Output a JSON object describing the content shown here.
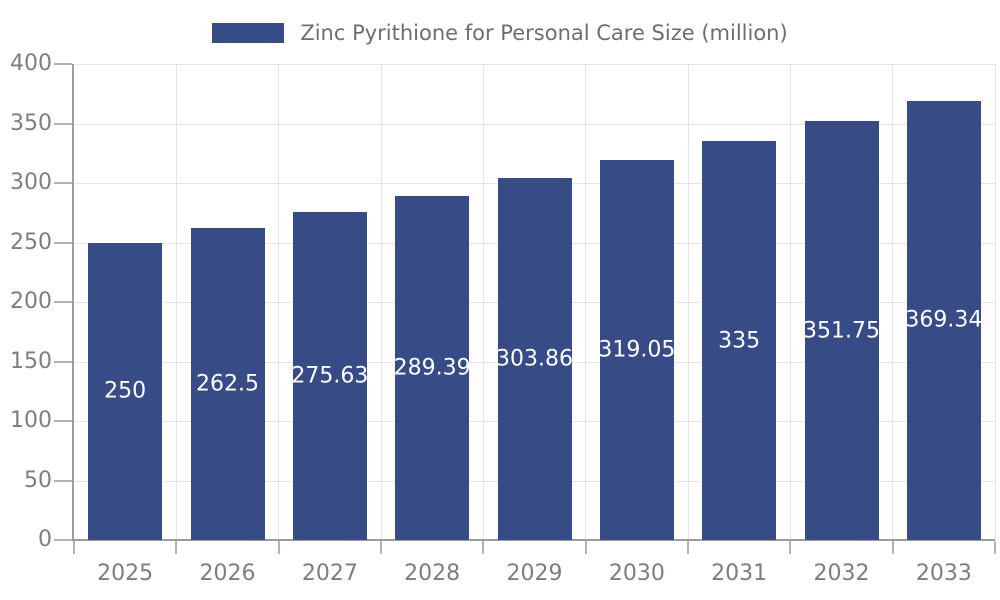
{
  "legend": {
    "label": "Zinc Pyrithione for Personal Care Size (million)"
  },
  "colors": {
    "bar": "#374b86",
    "grid": "#e3e3ea",
    "axis_line": "#9b9ba1",
    "tick": "#b2b2b8",
    "axis_text": "#7d7d82",
    "legend_text": "#6d6d73",
    "value_text": "#ffffff"
  },
  "chart_data": {
    "type": "bar",
    "title": "Zinc Pyrithione for Personal Care Size (million)",
    "categories": [
      "2025",
      "2026",
      "2027",
      "2028",
      "2029",
      "2030",
      "2031",
      "2032",
      "2033"
    ],
    "series": [
      {
        "name": "Zinc Pyrithione for Personal Care Size (million)",
        "values": [
          250,
          262.5,
          275.63,
          289.39,
          303.86,
          319.05,
          335,
          351.75,
          369.34
        ],
        "value_labels": [
          "250",
          "262.5",
          "275.63",
          "289.39",
          "303.86",
          "319.05",
          "335",
          "351.75",
          "369.34"
        ]
      }
    ],
    "xlabel": "",
    "ylabel": "",
    "ylim": [
      0,
      400
    ],
    "yticks": [
      0,
      50,
      100,
      150,
      200,
      250,
      300,
      350,
      400
    ],
    "grid": true,
    "legend_position": "top",
    "value_label_position": "inside-center"
  }
}
